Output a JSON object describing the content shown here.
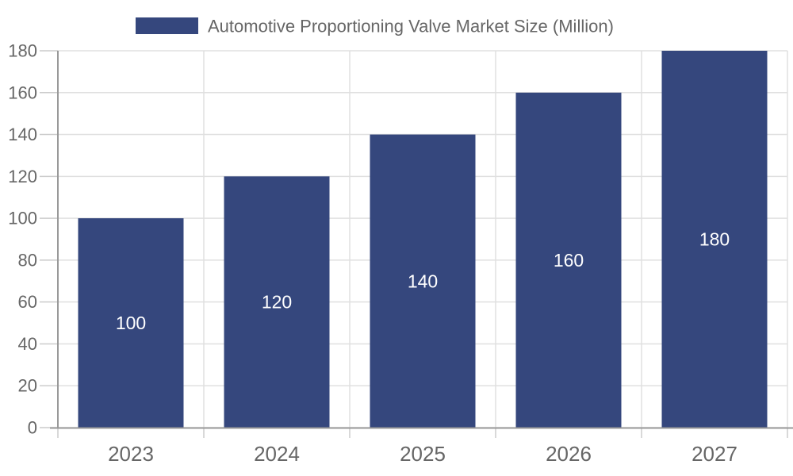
{
  "chart_data": {
    "type": "bar",
    "title": "Automotive Proportioning Valve Market Size (Million)",
    "categories": [
      "2023",
      "2024",
      "2025",
      "2026",
      "2027"
    ],
    "values": [
      100,
      120,
      140,
      160,
      180
    ],
    "xlabel": "",
    "ylabel": "",
    "ylim": [
      0,
      180
    ],
    "yticks": [
      0,
      20,
      40,
      60,
      80,
      100,
      120,
      140,
      160,
      180
    ],
    "grid": true,
    "legend_position": "top-center",
    "data_labels": "inside-center-white",
    "colors": {
      "bar": "#35477d",
      "data_label": "#ffffff",
      "tick_label": "#666666",
      "legend_text": "#666666",
      "axis_line": "#999999",
      "tick_line": "#cccccc",
      "grid_line": "#e0e0e0",
      "background": "#ffffff"
    }
  }
}
